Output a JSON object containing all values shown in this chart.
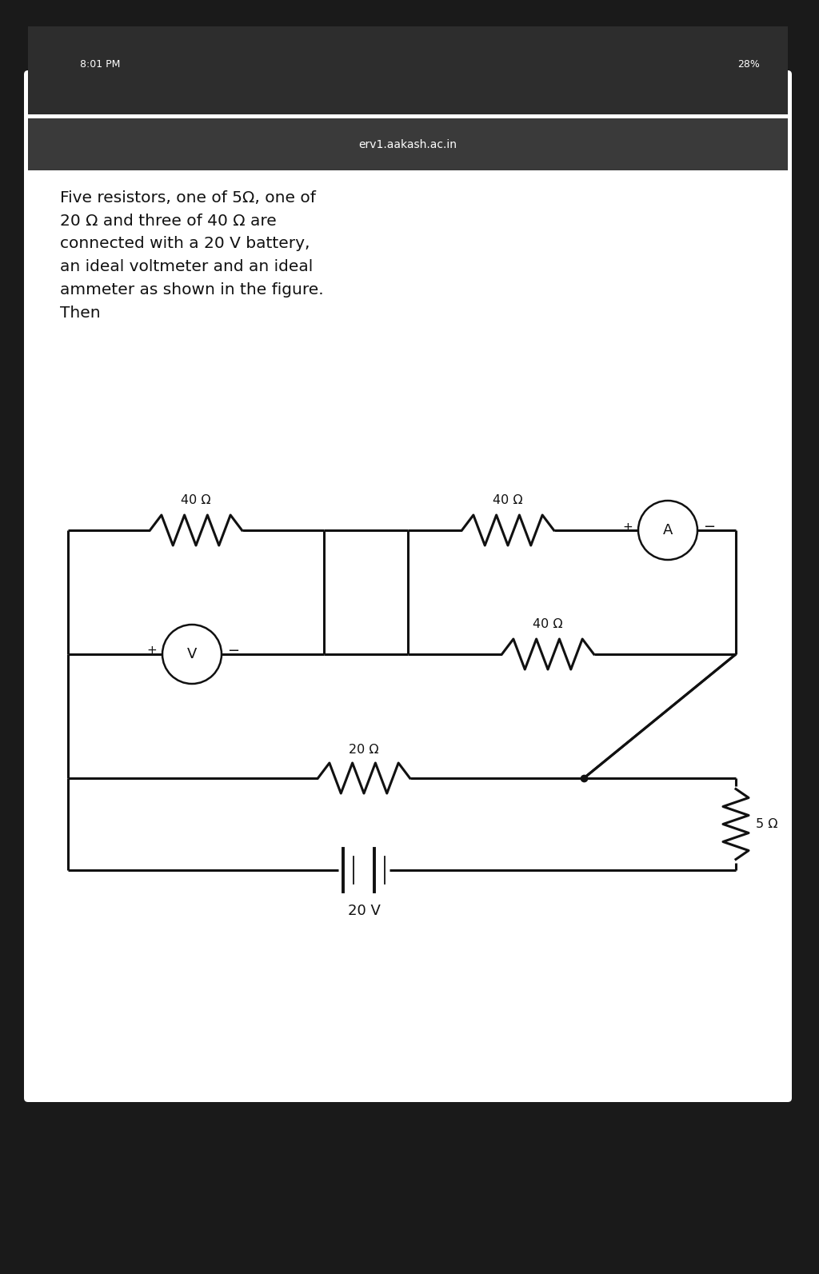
{
  "bg_color": "#1a1a1a",
  "card_color": "#f0f0f0",
  "text_color": "#111111",
  "line_color": "#111111",
  "title_text": "Five resistors, one of 5Ω, one of\n20 Ω and three of 40 Ω are\nconnected with a 20 V battery,\nan ideal voltmeter and an ideal\nammeter as shown in the figure.\nThen",
  "resistor_40_1_label": "40 Ω",
  "resistor_40_2_label": "40 Ω",
  "resistor_40_3_label": "40 Ω",
  "resistor_20_label": "20 Ω",
  "resistor_5_label": "5 Ω",
  "battery_label": "20 V",
  "voltmeter_label": "V",
  "ammeter_label": "A",
  "phone_bar_color": "#2a2a2a",
  "status_text": "8:01 PM",
  "url_text": "erv1.aakash.ac.in",
  "battery_pct": "28%"
}
